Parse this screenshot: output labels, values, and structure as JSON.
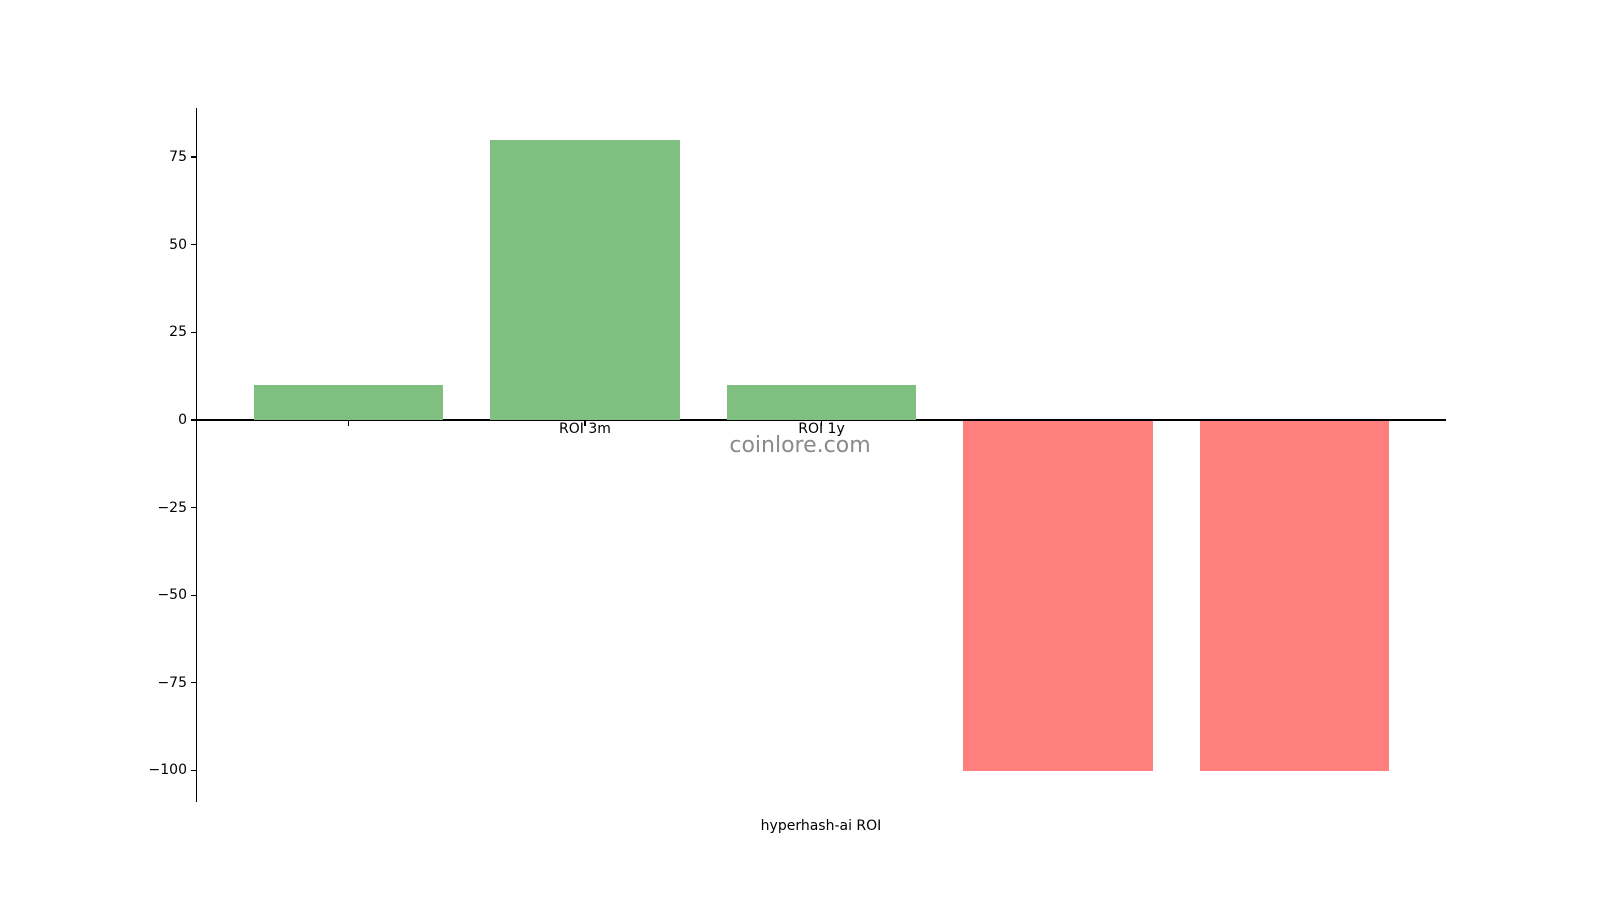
{
  "watermark": "coinlore.com",
  "chart_data": {
    "type": "bar",
    "title": "",
    "xlabel": "hyperhash-ai ROI",
    "ylabel": "",
    "categories": [
      "",
      "ROI 3m",
      "ROI 1y",
      "",
      ""
    ],
    "values": [
      10,
      80,
      10,
      -100,
      -100
    ],
    "bar_colors": [
      "#7fbf7f",
      "#7fbf7f",
      "#7fbf7f",
      "#ff7f7f",
      "#ff7f7f"
    ],
    "positive_color": "#7fbf7f",
    "negative_color": "#ff7f7f",
    "ytick_values": [
      75,
      50,
      25,
      0,
      -25,
      -50,
      -75,
      -100
    ],
    "ytick_labels": [
      "75",
      "50",
      "25",
      "0",
      "−25",
      "−50",
      "−75",
      "−100"
    ],
    "ylim": [
      -109,
      89
    ],
    "xlim": [
      -0.64,
      4.64
    ],
    "bar_width": 0.8,
    "grid": false,
    "legend_position": "none",
    "axis_color": "#000000",
    "background_color": "#ffffff",
    "watermark_color": "#8a8a8a"
  }
}
